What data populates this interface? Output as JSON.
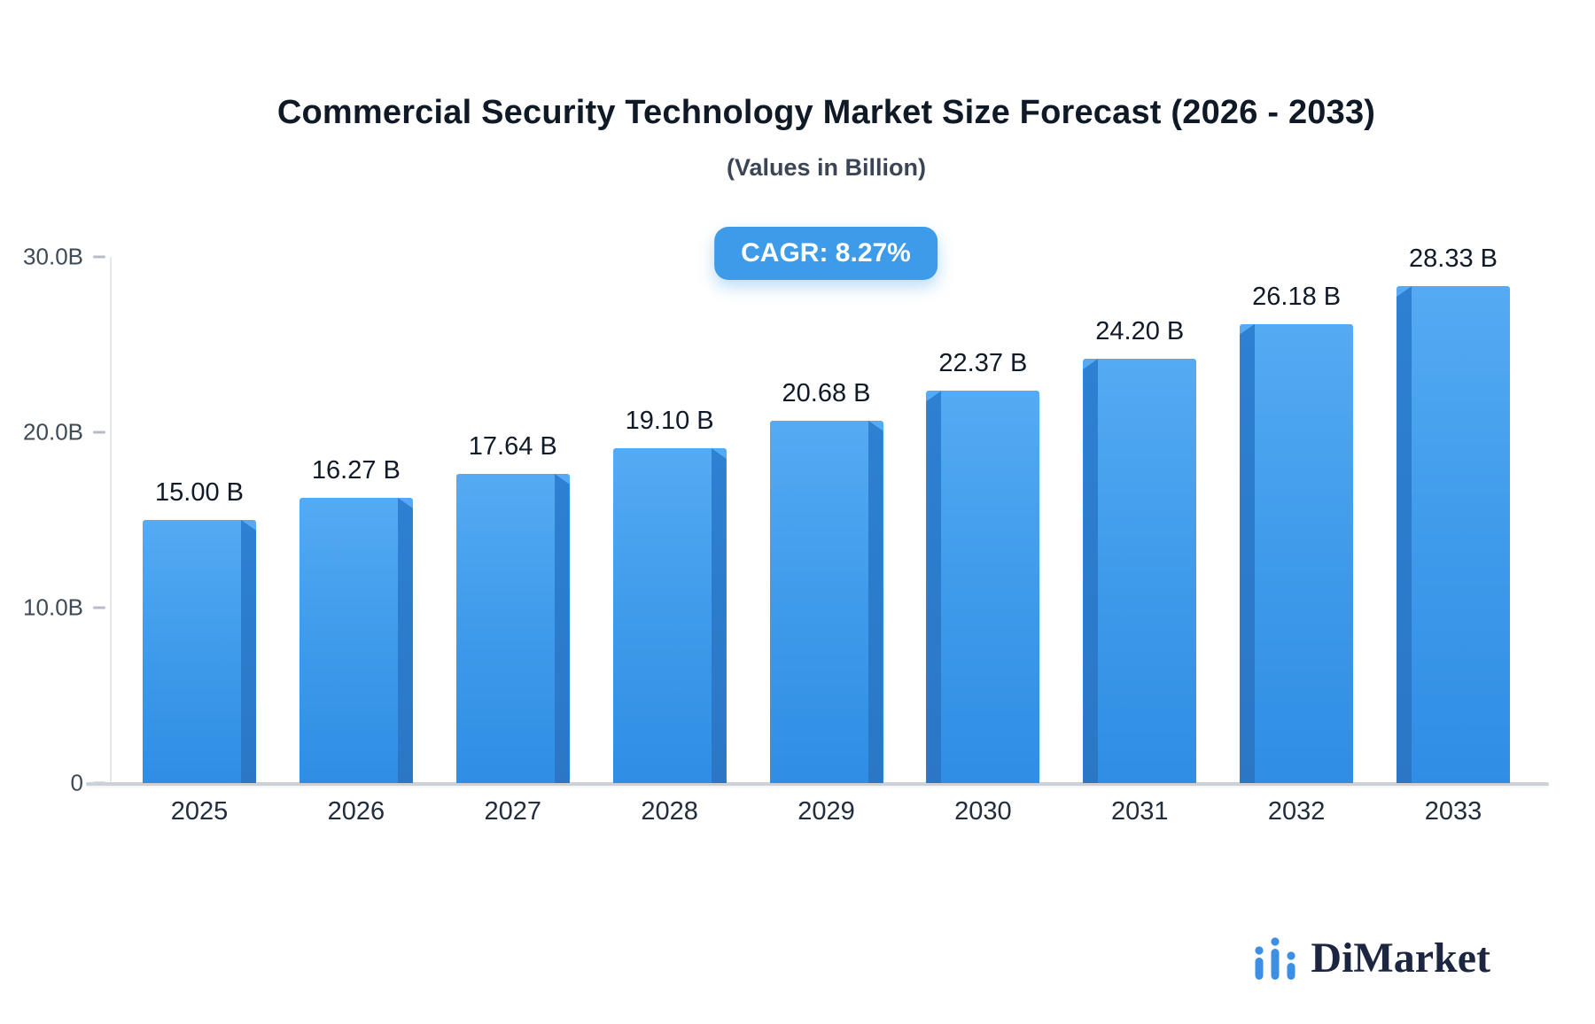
{
  "title": "Commercial Security Technology Market Size Forecast (2026 - 2033)",
  "subtitle": "(Values in Billion)",
  "badge": "CAGR: 8.27%",
  "logo": {
    "text": "DiMarket",
    "icon": "bar-chart-icon"
  },
  "colors": {
    "bar_face_top": "#55abf3",
    "bar_face_bottom": "#2f8ee4",
    "bar_side": "#2b7ccb",
    "badge_bg": "#3d9bea",
    "axis_line": "#ccd1d8",
    "logo_text": "#1c2640",
    "logo_icon": "#3d8fe4",
    "background": "#ffffff"
  },
  "chart_data": {
    "type": "bar",
    "title": "Commercial Security Technology Market Size Forecast (2026 - 2033)",
    "subtitle": "(Values in Billion)",
    "cagr_percent": 8.27,
    "unit": "Billion",
    "categories": [
      "2025",
      "2026",
      "2027",
      "2028",
      "2029",
      "2030",
      "2031",
      "2032",
      "2033"
    ],
    "values": [
      15.0,
      16.27,
      17.64,
      19.1,
      20.68,
      22.37,
      24.2,
      26.18,
      28.33
    ],
    "labels": [
      "15.00 B",
      "16.27 B",
      "17.64 B",
      "19.10 B",
      "20.68 B",
      "22.37 B",
      "24.20 B",
      "26.18 B",
      "28.33 B"
    ],
    "xlabel": "",
    "ylabel": "",
    "ylim": [
      0,
      30
    ],
    "yticks": [
      0,
      10,
      20,
      30
    ],
    "ytick_labels": [
      "0",
      "10.0B",
      "20.0B",
      "30.0B"
    ],
    "grid": false,
    "legend": false,
    "legend_position": "none"
  }
}
